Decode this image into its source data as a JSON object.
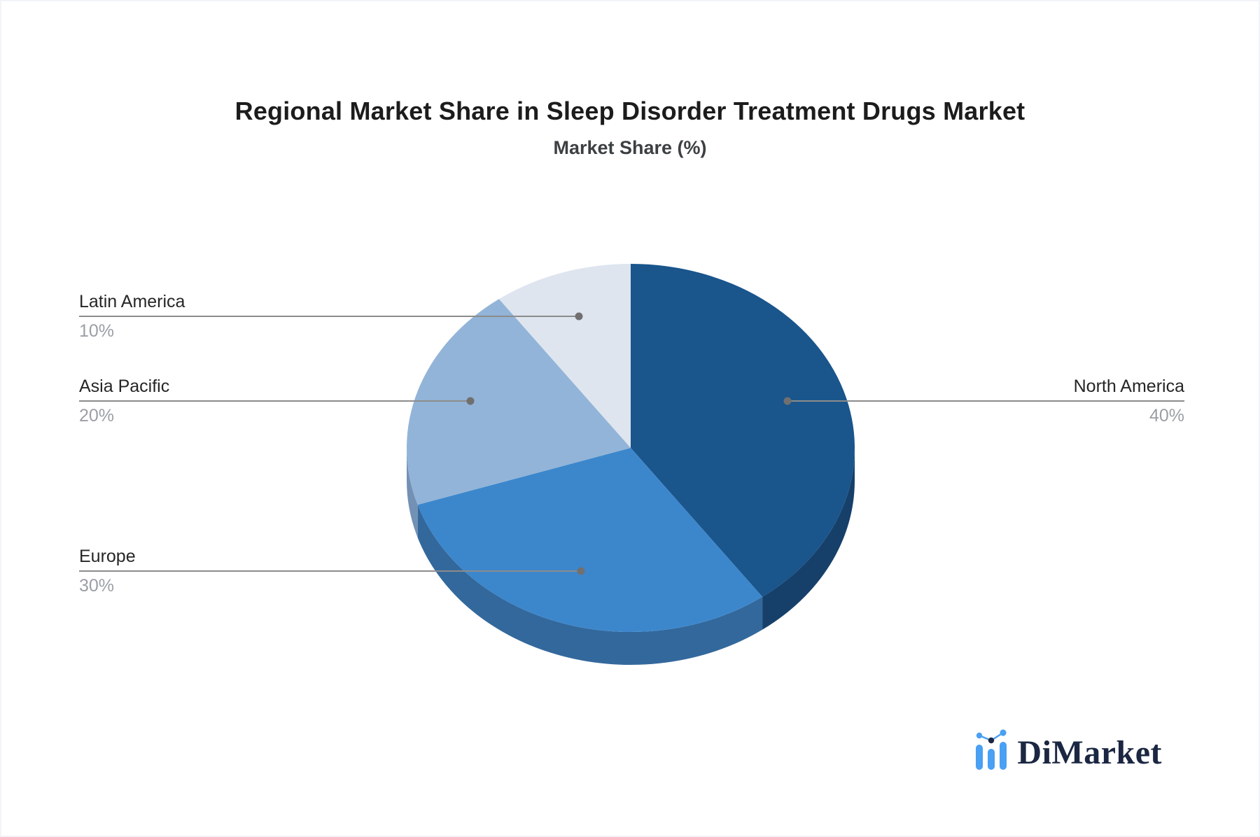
{
  "title": "Regional Market Share in Sleep Disorder Treatment Drugs Market",
  "subtitle": "Market Share (%)",
  "chart_data": {
    "type": "pie",
    "title": "Regional Market Share in Sleep Disorder Treatment Drugs Market",
    "subtitle": "Market Share (%)",
    "unit": "%",
    "style": "3d-pie",
    "start_angle_deg": 0,
    "direction": "clockwise",
    "legend": "none",
    "slices": [
      {
        "id": "north-america",
        "label": "North America",
        "value": 40,
        "color": "#1a558c",
        "side_color": "#16406a"
      },
      {
        "id": "europe",
        "label": "Europe",
        "value": 30,
        "color": "#3c87cc",
        "side_color": "#33689c"
      },
      {
        "id": "asia-pacific",
        "label": "Asia Pacific",
        "value": 20,
        "color": "#92b4d8",
        "side_color": "#7391b4"
      },
      {
        "id": "latin-america",
        "label": "Latin America",
        "value": 10,
        "color": "#dee5ef",
        "side_color": "#b9c5d6"
      }
    ]
  },
  "callouts": [
    {
      "id": "latin-america",
      "name": "Latin America",
      "pct": "10%"
    },
    {
      "id": "asia-pacific",
      "name": "Asia Pacific",
      "pct": "20%"
    },
    {
      "id": "europe",
      "name": "Europe",
      "pct": "30%"
    },
    {
      "id": "north-america",
      "name": "North America",
      "pct": "40%"
    }
  ],
  "connector_color": "#8c8c8c",
  "dot_color": "#707070",
  "logo": {
    "text": "DiMarket",
    "text_color": "#1b2742",
    "icon_color": "#4aa0f2",
    "icon_dot_dark": "#1b2742"
  }
}
